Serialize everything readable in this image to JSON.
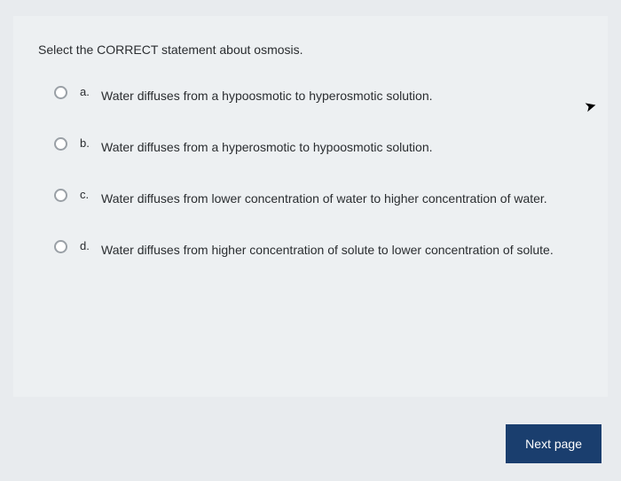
{
  "question": {
    "prompt": "Select the CORRECT statement about osmosis."
  },
  "options": [
    {
      "letter": "a.",
      "text": "Water diffuses from a hypoosmotic to hyperosmotic solution."
    },
    {
      "letter": "b.",
      "text": "Water diffuses from a hyperosmotic to hypoosmotic solution."
    },
    {
      "letter": "c.",
      "text": "Water diffuses from lower concentration of water to higher concentration of water."
    },
    {
      "letter": "d.",
      "text": "Water diffuses from higher concentration of solute to lower concentration of solute."
    }
  ],
  "buttons": {
    "next": "Next page"
  },
  "colors": {
    "background": "#e8ebee",
    "panel": "#edf0f2",
    "text": "#2a2d30",
    "button_bg": "#1a3e6e",
    "button_text": "#ffffff",
    "radio_border": "#9aa0a6"
  }
}
